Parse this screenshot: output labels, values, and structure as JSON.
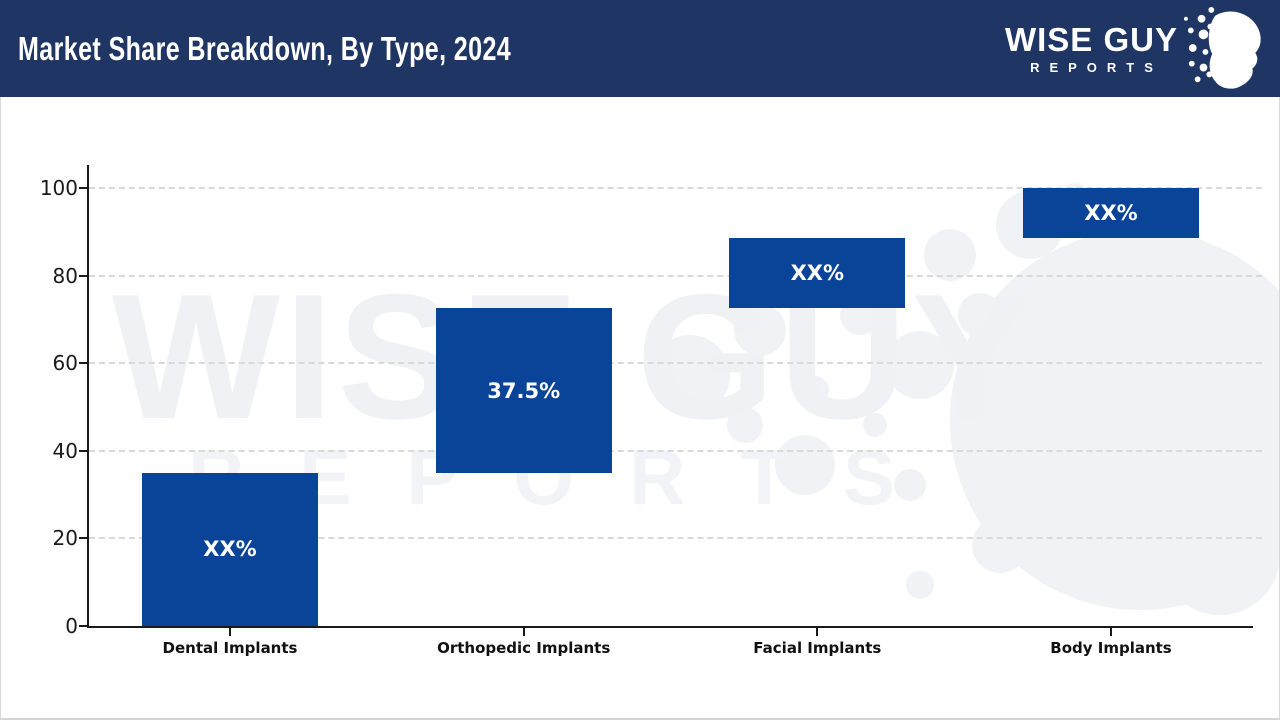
{
  "header": {
    "title": "Market Share Breakdown, By Type, 2024",
    "logo": {
      "line1": "WISE GUY",
      "line2": "REPORTS"
    }
  },
  "watermark": {
    "line1": "WISE GUY",
    "line2": "REPORTS"
  },
  "colors": {
    "header_navy": "#1f3564",
    "bar_blue": "#0a4499",
    "gridline": "#d9d9d9",
    "axis": "#1a1a1a",
    "title_text": "#ffffff",
    "bar_label_text": "#ffffff",
    "watermark_gray": "#f0f1f4"
  },
  "chart_data": {
    "type": "bar",
    "variant": "waterfall-stacked",
    "title": "Market Share Breakdown, By Type, 2024",
    "xlabel": "",
    "ylabel": "",
    "ylim": [
      0,
      100
    ],
    "yticks": [
      0,
      20,
      40,
      60,
      80,
      100
    ],
    "grid": "horizontal-dashed",
    "legend": null,
    "categories": [
      "Dental Implants",
      "Orthopedic Implants",
      "Facial Implants",
      "Body Implants"
    ],
    "bars": [
      {
        "category": "Dental Implants",
        "start": 0,
        "end": 35,
        "value": 35,
        "label": "XX%"
      },
      {
        "category": "Orthopedic Implants",
        "start": 35,
        "end": 72.5,
        "value": 37.5,
        "label": "37.5%"
      },
      {
        "category": "Facial Implants",
        "start": 72.5,
        "end": 88.5,
        "value": 16,
        "label": "XX%"
      },
      {
        "category": "Body Implants",
        "start": 88.5,
        "end": 100,
        "value": 11.5,
        "label": "XX%"
      }
    ],
    "bar_color": "#0a4499"
  }
}
